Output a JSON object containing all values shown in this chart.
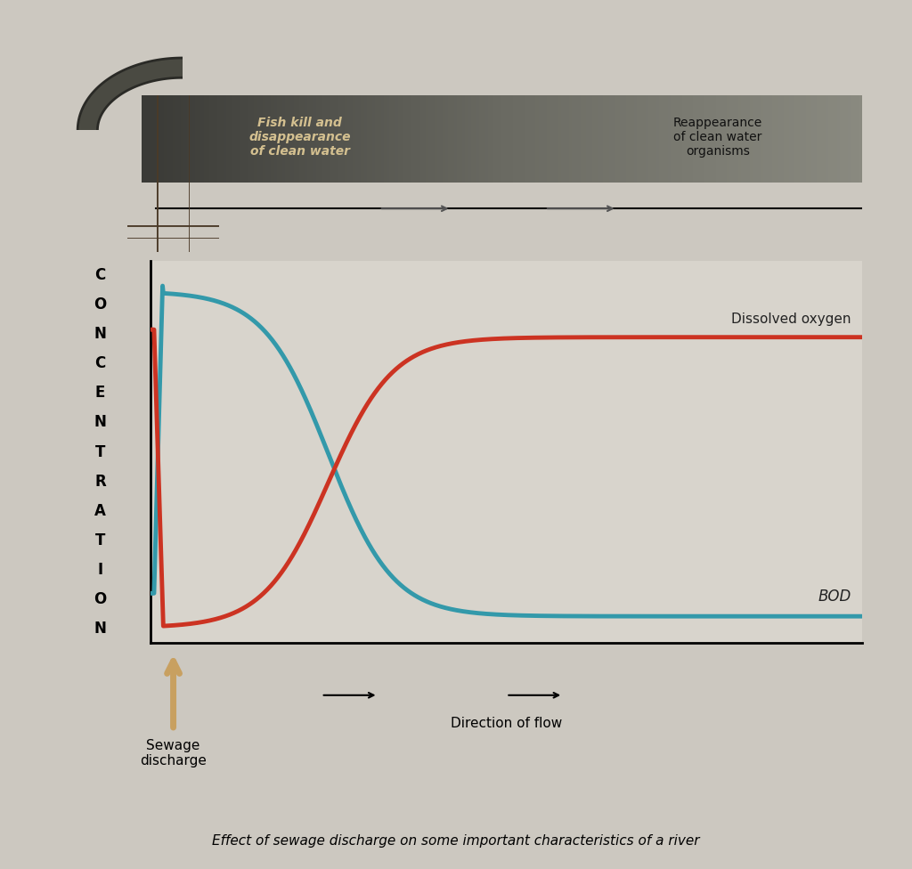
{
  "background_color": "#ccc8c0",
  "plot_bg_color": "#d8d4cc",
  "title": "Effect of sewage discharge on some important characteristics of a river",
  "ylabel_letters": [
    "C",
    "O",
    "N",
    "C",
    "E",
    "N",
    "T",
    "R",
    "A",
    "T",
    "I",
    "O",
    "N"
  ],
  "dissolved_oxygen_color": "#cc3322",
  "bod_color": "#3399aa",
  "pipe_color": "#c8a060",
  "pipe_dark_color": "#4a3a28",
  "banner_color_left": "#555550",
  "banner_color_right": "#888880",
  "fish_kill_text": "Fish kill and\ndisappearance\nof clean water",
  "reappearance_text": "Reappearance\nof clean water\norganisms",
  "sewage_discharge_text": "Sewage\ndischarge",
  "direction_of_flow_text": "Direction of flow",
  "dissolved_oxygen_label": "Dissolved oxygen",
  "bod_label": "BOD",
  "arrow_color": "#555555"
}
